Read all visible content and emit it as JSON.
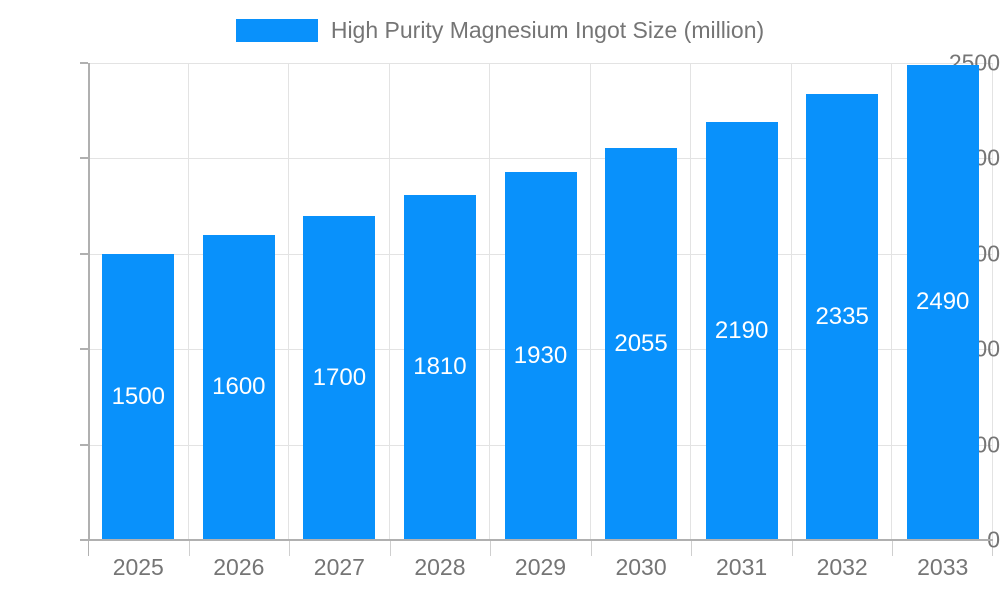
{
  "legend": {
    "label": "High Purity Magnesium Ingot Size (million)"
  },
  "chart_data": {
    "type": "bar",
    "title": "High Purity Magnesium Ingot Size (million)",
    "categories": [
      "2025",
      "2026",
      "2027",
      "2028",
      "2029",
      "2030",
      "2031",
      "2032",
      "2033"
    ],
    "values": [
      1500,
      1600,
      1700,
      1810,
      1930,
      2055,
      2190,
      2335,
      2490
    ],
    "value_labels": [
      "1500",
      "1600",
      "1700",
      "1810",
      "1930",
      "2055",
      "2190",
      "2335",
      "2490"
    ],
    "xlabel": "",
    "ylabel": "",
    "ylim": [
      0,
      2500
    ],
    "yticks": [
      0,
      500,
      1000,
      1500,
      2000,
      2500
    ],
    "ytick_labels": [
      "0",
      "500",
      "1000",
      "1500",
      "2000",
      "2500"
    ],
    "grid": true,
    "legend_position": "top-center",
    "colors": {
      "bar": "#0991fb",
      "value_label": "#ffffff",
      "axis_text": "#757575",
      "grid_line": "#e3e3e3",
      "axis_line": "#b0b0b0",
      "x_tick": "#cfcfcf",
      "background": "#ffffff"
    }
  }
}
